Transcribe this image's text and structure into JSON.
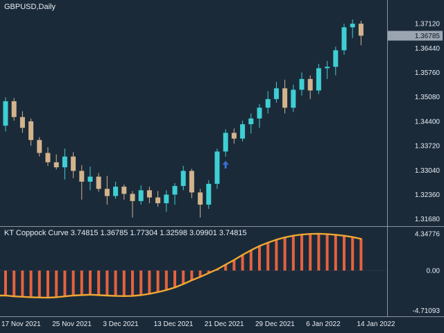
{
  "header": {
    "symbol_label": "GBPUSD,Daily"
  },
  "indicator": {
    "name": "KT Coppock Curve",
    "label": "KT Coppock Curve 3.74815 1.36785 1.77304 1.32598 3.09901 3.74815"
  },
  "colors": {
    "background": "#1B2A39",
    "bull": "#3ECFD4",
    "bear": "#D2B48C",
    "histogram": "#E4633E",
    "curve": "#F0A832",
    "text": "#E8EEF4",
    "separator": "#8A949E",
    "tag_bg": "#9AA5B1",
    "tag_text": "#0B131C",
    "arrow": "#3B6FD9",
    "zero_line": "#45566A"
  },
  "time_axis": {
    "labels": [
      {
        "text": "17 Nov 2021",
        "index": 0
      },
      {
        "text": "25 Nov 2021",
        "index": 6
      },
      {
        "text": "3 Dec 2021",
        "index": 12
      },
      {
        "text": "13 Dec 2021",
        "index": 18
      },
      {
        "text": "21 Dec 2021",
        "index": 24
      },
      {
        "text": "29 Dec 2021",
        "index": 30
      },
      {
        "text": "6 Jan 2022",
        "index": 36
      },
      {
        "text": "14 Jan 2022",
        "index": 42
      }
    ]
  },
  "chart_data": [
    {
      "type": "candlestick",
      "symbol": "GBPUSD",
      "timeframe": "Daily",
      "ylim": [
        1.315,
        1.3778
      ],
      "y_ticks": [
        "1.37120",
        "1.36440",
        "1.35760",
        "1.35080",
        "1.34400",
        "1.33720",
        "1.33040",
        "1.32360",
        "1.31680"
      ],
      "current_price": "1.36785",
      "dates": [
        "17 Nov 2021",
        "18 Nov 2021",
        "19 Nov 2021",
        "22 Nov 2021",
        "23 Nov 2021",
        "24 Nov 2021",
        "25 Nov 2021",
        "26 Nov 2021",
        "29 Nov 2021",
        "30 Nov 2021",
        "1 Dec 2021",
        "2 Dec 2021",
        "3 Dec 2021",
        "6 Dec 2021",
        "7 Dec 2021",
        "8 Dec 2021",
        "9 Dec 2021",
        "10 Dec 2021",
        "13 Dec 2021",
        "14 Dec 2021",
        "15 Dec 2021",
        "16 Dec 2021",
        "17 Dec 2021",
        "20 Dec 2021",
        "21 Dec 2021",
        "22 Dec 2021",
        "23 Dec 2021",
        "24 Dec 2021",
        "27 Dec 2021",
        "28 Dec 2021",
        "29 Dec 2021",
        "30 Dec 2021",
        "31 Dec 2021",
        "3 Jan 2022",
        "4 Jan 2022",
        "5 Jan 2022",
        "6 Jan 2022",
        "7 Jan 2022",
        "10 Jan 2022",
        "11 Jan 2022",
        "12 Jan 2022",
        "13 Jan 2022",
        "14 Jan 2022"
      ],
      "ohlc": [
        [
          1.3428,
          1.3507,
          1.3412,
          1.3496
        ],
        [
          1.3496,
          1.3505,
          1.3442,
          1.3452
        ],
        [
          1.3452,
          1.3468,
          1.3408,
          1.3422
        ],
        [
          1.344,
          1.3448,
          1.3372,
          1.3388
        ],
        [
          1.3388,
          1.3396,
          1.3342,
          1.3352
        ],
        [
          1.3352,
          1.3368,
          1.3316,
          1.3326
        ],
        [
          1.3326,
          1.3348,
          1.3306,
          1.3312
        ],
        [
          1.3312,
          1.3364,
          1.3278,
          1.3342
        ],
        [
          1.3342,
          1.3354,
          1.3282,
          1.3302
        ],
        [
          1.3302,
          1.3318,
          1.3222,
          1.3272
        ],
        [
          1.3272,
          1.3314,
          1.3248,
          1.3286
        ],
        [
          1.3286,
          1.3296,
          1.3244,
          1.3252
        ],
        [
          1.3252,
          1.3288,
          1.3208,
          1.3232
        ],
        [
          1.3232,
          1.3272,
          1.3224,
          1.3258
        ],
        [
          1.3258,
          1.3264,
          1.3222,
          1.3238
        ],
        [
          1.3238,
          1.3246,
          1.3172,
          1.3218
        ],
        [
          1.3218,
          1.3262,
          1.3208,
          1.3248
        ],
        [
          1.3248,
          1.3258,
          1.3212,
          1.3228
        ],
        [
          1.3228,
          1.3246,
          1.3202,
          1.3212
        ],
        [
          1.3212,
          1.3248,
          1.3188,
          1.3236
        ],
        [
          1.3236,
          1.3268,
          1.3208,
          1.326
        ],
        [
          1.326,
          1.3316,
          1.3248,
          1.3302
        ],
        [
          1.3302,
          1.3308,
          1.3226,
          1.3242
        ],
        [
          1.3242,
          1.3252,
          1.3172,
          1.3208
        ],
        [
          1.3208,
          1.3276,
          1.3196,
          1.3266
        ],
        [
          1.3266,
          1.3364,
          1.3252,
          1.3356
        ],
        [
          1.3356,
          1.3418,
          1.3342,
          1.3408
        ],
        [
          1.3408,
          1.342,
          1.3378,
          1.3392
        ],
        [
          1.3392,
          1.3442,
          1.3384,
          1.3432
        ],
        [
          1.3432,
          1.3462,
          1.3406,
          1.3448
        ],
        [
          1.3448,
          1.3488,
          1.3422,
          1.3478
        ],
        [
          1.3478,
          1.3524,
          1.3462,
          1.3502
        ],
        [
          1.3502,
          1.355,
          1.3492,
          1.3532
        ],
        [
          1.3532,
          1.3556,
          1.3462,
          1.3478
        ],
        [
          1.3478,
          1.3542,
          1.3466,
          1.3528
        ],
        [
          1.3528,
          1.3576,
          1.3512,
          1.3558
        ],
        [
          1.3558,
          1.3568,
          1.3502,
          1.3526
        ],
        [
          1.3526,
          1.36,
          1.3516,
          1.3588
        ],
        [
          1.3588,
          1.3608,
          1.3558,
          1.3592
        ],
        [
          1.3592,
          1.3648,
          1.3568,
          1.3638
        ],
        [
          1.3638,
          1.3712,
          1.3626,
          1.3702
        ],
        [
          1.3702,
          1.3724,
          1.3672,
          1.3712
        ],
        [
          1.3712,
          1.372,
          1.3652,
          1.36785
        ]
      ],
      "annotations": [
        {
          "type": "up-arrow",
          "index": 26,
          "price": 1.333
        }
      ]
    },
    {
      "type": "bar+line",
      "name": "KT Coppock Curve",
      "ylim": [
        -4.71093,
        4.34776
      ],
      "y_ticks": [
        "4.34776",
        "0.00",
        "-4.71093"
      ],
      "last_value": 3.74815,
      "values": [
        -2.95,
        -3.05,
        -3.1,
        -3.15,
        -3.18,
        -3.2,
        -3.15,
        -3.05,
        -2.95,
        -2.9,
        -2.85,
        -2.9,
        -2.95,
        -3.0,
        -3.02,
        -3.0,
        -2.9,
        -2.75,
        -2.55,
        -2.3,
        -2.0,
        -1.6,
        -1.15,
        -0.75,
        -0.3,
        0.15,
        0.7,
        1.25,
        1.85,
        2.4,
        2.9,
        3.3,
        3.65,
        3.92,
        4.12,
        4.26,
        4.33,
        4.34776,
        4.31,
        4.23,
        4.11,
        3.96,
        3.74815
      ]
    }
  ]
}
